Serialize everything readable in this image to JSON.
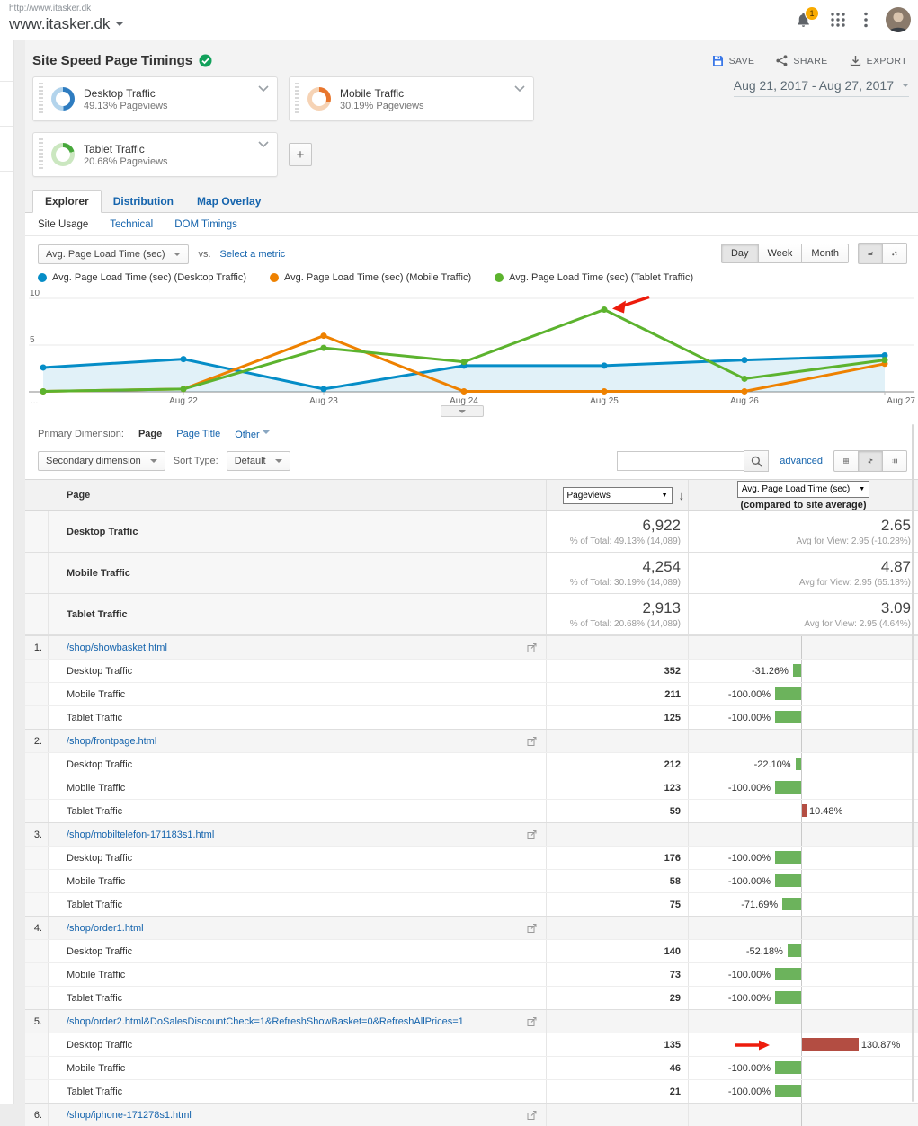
{
  "topbar": {
    "url": "http://www.itasker.dk",
    "property_name": "www.itasker.dk",
    "notification_count": "1"
  },
  "report": {
    "title": "Site Speed Page Timings",
    "actions": {
      "save": "SAVE",
      "share": "SHARE",
      "export": "EXPORT"
    },
    "date_range": "Aug 21, 2017 - Aug 27, 2017"
  },
  "segments": [
    {
      "name": "Desktop Traffic",
      "detail": "49.13% Pageviews",
      "pct": 49.13,
      "color": "#2e7cc0",
      "tint": "#b3d4ec"
    },
    {
      "name": "Mobile Traffic",
      "detail": "30.19% Pageviews",
      "pct": 30.19,
      "color": "#e8762d",
      "tint": "#f6d3b5"
    },
    {
      "name": "Tablet Traffic",
      "detail": "20.68% Pageviews",
      "pct": 20.68,
      "color": "#47a83b",
      "tint": "#cbe7c0"
    }
  ],
  "add_segment_label": "+",
  "tabs": {
    "items": [
      "Explorer",
      "Distribution",
      "Map Overlay"
    ],
    "active": "Explorer"
  },
  "subtabs": {
    "items": [
      "Site Usage",
      "Technical",
      "DOM Timings"
    ],
    "active": "Site Usage"
  },
  "metric_bar": {
    "metric": "Avg. Page Load Time (sec)",
    "vs_label": "vs.",
    "select_metric_label": "Select a metric",
    "granularity": [
      "Day",
      "Week",
      "Month"
    ],
    "active_granularity": "Day"
  },
  "chart_data": {
    "type": "line",
    "x_labels": [
      "...",
      "Aug 22",
      "Aug 23",
      "Aug 24",
      "Aug 25",
      "Aug 26",
      "Aug 27"
    ],
    "ylabel": "Avg. Page Load Time (sec)",
    "ylim": [
      0,
      10
    ],
    "yticks": [
      5,
      10
    ],
    "grid": true,
    "legend_position": "top",
    "series": [
      {
        "name": "Avg. Page Load Time (sec) (Desktop Traffic)",
        "color": "#058dc7",
        "area": true,
        "values": [
          2.6,
          3.5,
          0.3,
          2.8,
          2.8,
          3.4,
          3.9
        ]
      },
      {
        "name": "Avg. Page Load Time (sec) (Mobile Traffic)",
        "color": "#ee8100",
        "values": [
          0.05,
          0.3,
          6.0,
          0.05,
          0.05,
          0.05,
          3.0
        ]
      },
      {
        "name": "Avg. Page Load Time (sec) (Tablet Traffic)",
        "color": "#5cb32e",
        "values": [
          0.05,
          0.3,
          4.7,
          3.2,
          8.8,
          1.4,
          3.4
        ]
      }
    ],
    "annotation": {
      "type": "arrow",
      "target_series": 2,
      "target_index": 4,
      "color": "#ed1c0c"
    }
  },
  "primary_dimension": {
    "label": "Primary Dimension:",
    "options": [
      "Page",
      "Page Title",
      "Other"
    ],
    "active": "Page"
  },
  "controls": {
    "secondary_dimension_label": "Secondary dimension",
    "sort_type_label": "Sort Type:",
    "sort_type_value": "Default",
    "search_value": "",
    "advanced_label": "advanced"
  },
  "table": {
    "header": {
      "page": "Page",
      "pageviews": "Pageviews",
      "metric": "Avg. Page Load Time (sec)",
      "metric_note": "(compared to site average)"
    },
    "summary_rows": [
      {
        "label": "Desktop Traffic",
        "pageviews": "6,922",
        "pageviews_note": "% of Total: 49.13% (14,089)",
        "value": "2.65",
        "value_note": "Avg for View: 2.95 (-10.28%)"
      },
      {
        "label": "Mobile Traffic",
        "pageviews": "4,254",
        "pageviews_note": "% of Total: 30.19% (14,089)",
        "value": "4.87",
        "value_note": "Avg for View: 2.95 (65.18%)"
      },
      {
        "label": "Tablet Traffic",
        "pageviews": "2,913",
        "pageviews_note": "% of Total: 20.68% (14,089)",
        "value": "3.09",
        "value_note": "Avg for View: 2.95 (4.64%)"
      }
    ],
    "groups": [
      {
        "index": "1.",
        "url": "/shop/showbasket.html",
        "rows": [
          {
            "label": "Desktop Traffic",
            "pageviews": "352",
            "pct": -31.26,
            "pct_label": "-31.26%"
          },
          {
            "label": "Mobile Traffic",
            "pageviews": "211",
            "pct": -100.0,
            "pct_label": "-100.00%"
          },
          {
            "label": "Tablet Traffic",
            "pageviews": "125",
            "pct": -100.0,
            "pct_label": "-100.00%"
          }
        ]
      },
      {
        "index": "2.",
        "url": "/shop/frontpage.html",
        "rows": [
          {
            "label": "Desktop Traffic",
            "pageviews": "212",
            "pct": -22.1,
            "pct_label": "-22.10%"
          },
          {
            "label": "Mobile Traffic",
            "pageviews": "123",
            "pct": -100.0,
            "pct_label": "-100.00%"
          },
          {
            "label": "Tablet Traffic",
            "pageviews": "59",
            "pct": 10.48,
            "pct_label": "10.48%"
          }
        ]
      },
      {
        "index": "3.",
        "url": "/shop/mobiltelefon-171183s1.html",
        "rows": [
          {
            "label": "Desktop Traffic",
            "pageviews": "176",
            "pct": -100.0,
            "pct_label": "-100.00%"
          },
          {
            "label": "Mobile Traffic",
            "pageviews": "58",
            "pct": -100.0,
            "pct_label": "-100.00%"
          },
          {
            "label": "Tablet Traffic",
            "pageviews": "75",
            "pct": -71.69,
            "pct_label": "-71.69%"
          }
        ]
      },
      {
        "index": "4.",
        "url": "/shop/order1.html",
        "rows": [
          {
            "label": "Desktop Traffic",
            "pageviews": "140",
            "pct": -52.18,
            "pct_label": "-52.18%"
          },
          {
            "label": "Mobile Traffic",
            "pageviews": "73",
            "pct": -100.0,
            "pct_label": "-100.00%"
          },
          {
            "label": "Tablet Traffic",
            "pageviews": "29",
            "pct": -100.0,
            "pct_label": "-100.00%"
          }
        ]
      },
      {
        "index": "5.",
        "url": "/shop/order2.html&DoSalesDiscountCheck=1&RefreshShowBasket=0&RefreshAllPrices=1",
        "rows": [
          {
            "label": "Desktop Traffic",
            "pageviews": "135",
            "pct": 130.87,
            "pct_label": "130.87%",
            "annotated": true
          },
          {
            "label": "Mobile Traffic",
            "pageviews": "46",
            "pct": -100.0,
            "pct_label": "-100.00%"
          },
          {
            "label": "Tablet Traffic",
            "pageviews": "21",
            "pct": -100.0,
            "pct_label": "-100.00%"
          }
        ]
      },
      {
        "index": "6.",
        "url": "/shop/iphone-171278s1.html",
        "rows": []
      }
    ]
  },
  "colors": {
    "bar_positive": "#b34d42",
    "bar_negative": "#6cb35c",
    "link": "#1564ad",
    "annotation": "#ed1c0c",
    "badge": "#f9ab00",
    "verified": "#12a15b"
  }
}
